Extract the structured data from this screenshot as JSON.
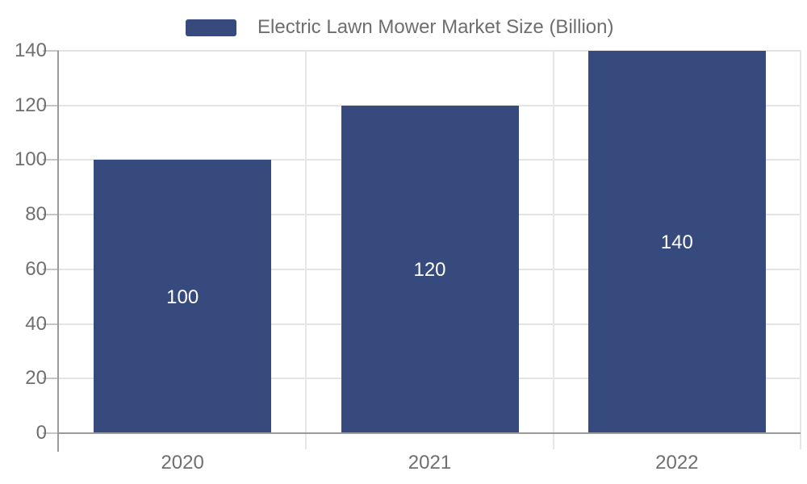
{
  "chart_data": {
    "type": "bar",
    "title": "Electric Lawn Mower Market Size (Billion)",
    "legend": {
      "label": "Electric Lawn Mower Market Size (Billion)",
      "position": "top"
    },
    "categories": [
      "2020",
      "2021",
      "2022"
    ],
    "values": [
      100,
      120,
      140
    ],
    "bar_value_labels": [
      "100",
      "120",
      "140"
    ],
    "xlabel": "",
    "ylabel": "",
    "ylim": [
      0,
      140
    ],
    "ytick_step": 20,
    "ytick_labels": [
      "0",
      "20",
      "40",
      "60",
      "80",
      "100",
      "120",
      "140"
    ],
    "grid": true,
    "colors": {
      "bar": "#374a7d",
      "bar_value_label": "#ffffff",
      "axis_label": "#6f6f6f",
      "legend_text": "#6e6e6e"
    }
  }
}
